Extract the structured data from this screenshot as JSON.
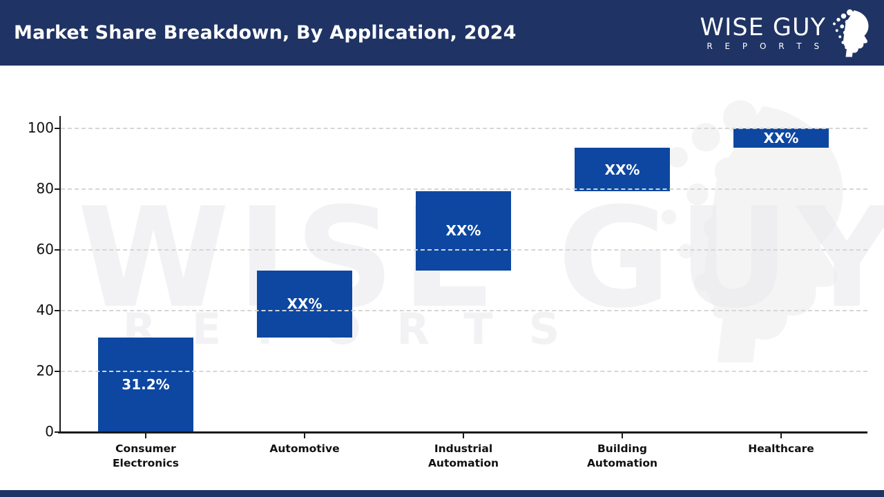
{
  "header": {
    "title": "Market Share Breakdown, By Application, 2024",
    "logo_line1": "WISE GUY",
    "logo_line2": "R E P O R T S"
  },
  "watermark": {
    "line1": "WISE GUY",
    "line2": "REPORTS"
  },
  "colors": {
    "header_bg": "#1f3364",
    "footer_bg": "#1f3364",
    "bar": "#0d47a1",
    "grid": "#d6d6d6",
    "bar_label_text": "#ffffff",
    "axis": "#1a1a1a",
    "watermark": "#f2f2f4"
  },
  "chart_data": {
    "type": "bar",
    "subtype": "waterfall",
    "title": "Market Share Breakdown, By Application, 2024",
    "categories": [
      "Consumer Electronics",
      "Automotive",
      "Industrial Automation",
      "Building Automation",
      "Healthcare"
    ],
    "category_lines": [
      [
        "Consumer",
        "Electronics"
      ],
      [
        "Automotive"
      ],
      [
        "Industrial",
        "Automation"
      ],
      [
        "Building",
        "Automation"
      ],
      [
        "Healthcare"
      ]
    ],
    "segments": [
      {
        "category": "Consumer Electronics",
        "start": 0,
        "end": 31.2,
        "value": 31.2,
        "label": "31.2%"
      },
      {
        "category": "Automotive",
        "start": 31.2,
        "end": 53.2,
        "value": 22.0,
        "label": "XX%"
      },
      {
        "category": "Industrial Automation",
        "start": 53.2,
        "end": 79.3,
        "value": 26.1,
        "label": "XX%"
      },
      {
        "category": "Building Automation",
        "start": 79.3,
        "end": 93.6,
        "value": 14.3,
        "label": "XX%"
      },
      {
        "category": "Healthcare",
        "start": 93.6,
        "end": 100,
        "value": 6.4,
        "label": "XX%"
      }
    ],
    "ylim": [
      0,
      100
    ],
    "yticks": [
      0,
      20,
      40,
      60,
      80,
      100
    ],
    "xlabel": "",
    "ylabel": "",
    "legend": "none",
    "grid": "horizontal dashed, drawn above bars"
  }
}
